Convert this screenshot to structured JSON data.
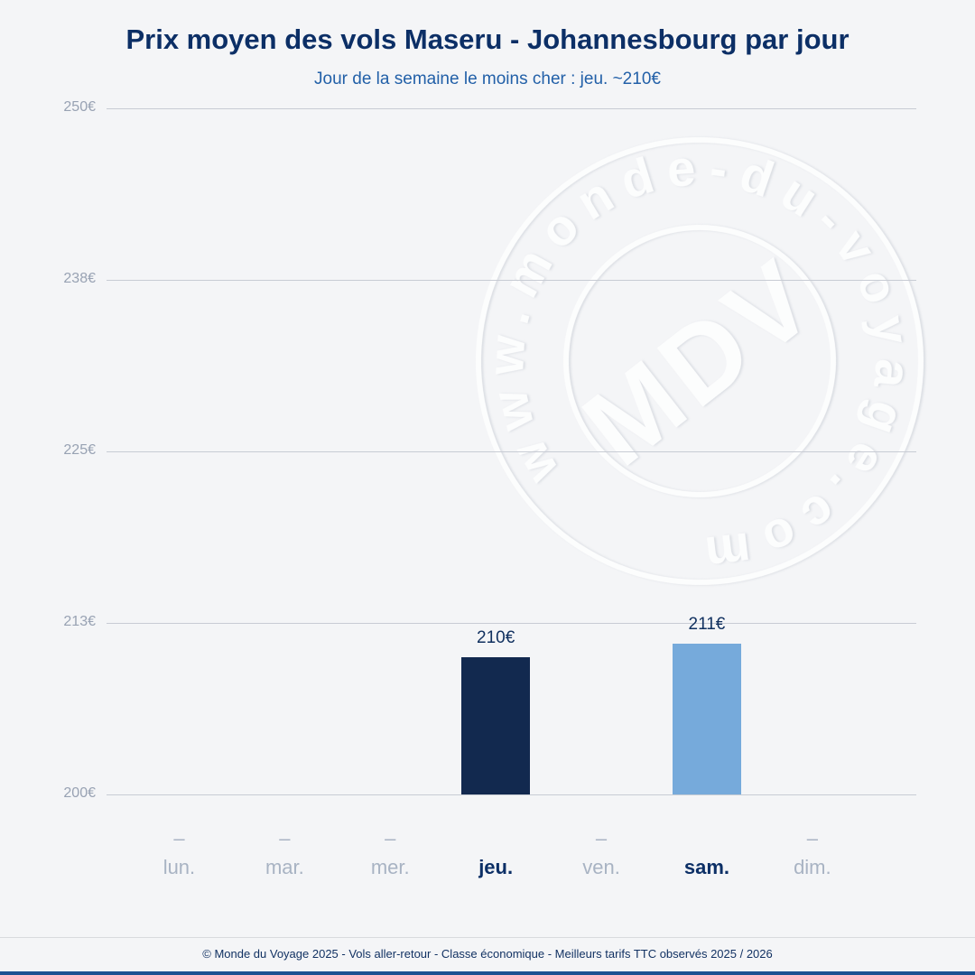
{
  "chart_data": {
    "type": "bar",
    "title": "Prix moyen des vols Maseru - Johannesbourg par jour",
    "subtitle": "Jour de la semaine le moins cher : jeu. ~210€",
    "categories": [
      "lun.",
      "mar.",
      "mer.",
      "jeu.",
      "ven.",
      "sam.",
      "dim."
    ],
    "values": [
      null,
      null,
      null,
      210,
      null,
      211,
      null
    ],
    "value_labels": [
      null,
      null,
      null,
      "210€",
      null,
      "211€",
      null
    ],
    "no_data_marker": "–",
    "highlight_category": "jeu.",
    "ylim": [
      200,
      250
    ],
    "ytick_values": [
      250,
      238,
      225,
      213,
      200
    ],
    "ytick_labels": [
      "250€",
      "238€",
      "225€",
      "213€",
      "200€"
    ],
    "grid": "on",
    "legend": "none",
    "colors": {
      "bar_highlight": "#12294f",
      "bar_default": "#76aadb",
      "title": "#0c2f66",
      "subtitle": "#2260a8",
      "gridline": "#c8ccd4",
      "axis_label": "#98a2b3",
      "inactive_day_label": "#a8b3c3",
      "active_day_label": "#0c2f66"
    }
  },
  "watermark": {
    "ring_text": "www.monde-du-voyage.com",
    "center_text": "MDV"
  },
  "footer": {
    "text": "© Monde du Voyage 2025 - Vols aller-retour - Classe économique - Meilleurs tarifs TTC observés 2025 / 2026"
  }
}
